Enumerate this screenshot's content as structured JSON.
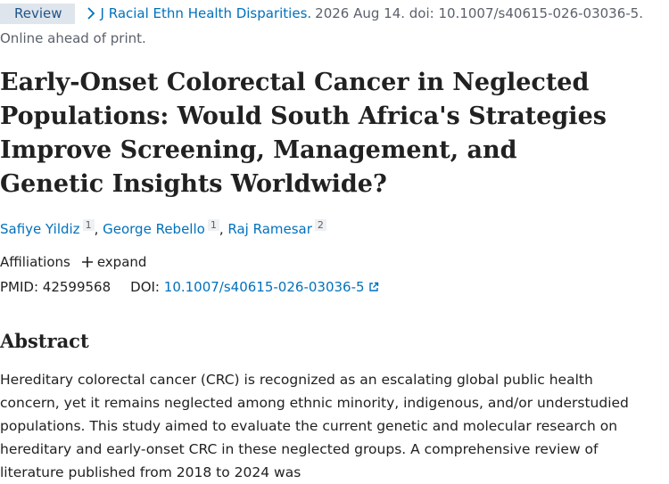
{
  "header": {
    "badge": "Review",
    "journal": "J Racial Ethn Health Disparities.",
    "citation": "2026 Aug 14. doi: 10.1007/s40615-026-03036-5.",
    "status": "Online ahead of print."
  },
  "title": "Early-Onset Colorectal Cancer in Neglected Populations: Would South Africa's Strategies Improve Screening, Management, and Genetic Insights Worldwide?",
  "authors": [
    {
      "name": "Safiye Yildiz",
      "affiliation": 1
    },
    {
      "name": "George Rebello",
      "affiliation": 1
    },
    {
      "name": "Raj Ramesar",
      "affiliation": 2
    }
  ],
  "author_separator": ",",
  "affiliations": {
    "label": "Affiliations",
    "toggle": "expand"
  },
  "identifiers": {
    "pmid_label": "PMID:",
    "pmid": "42599568",
    "doi_label": "DOI:",
    "doi": "10.1007/s40615-026-03036-5"
  },
  "abstract": {
    "heading": "Abstract",
    "text": "Hereditary colorectal cancer (CRC) is recognized as an escalating global public health concern, yet it remains neglected among ethnic minority, indigenous, and/or understudied populations. This study aimed to evaluate the current genetic and molecular research on hereditary and early-onset CRC in these neglected groups. A comprehensive review of literature published from 2018 to 2024 was"
  }
}
